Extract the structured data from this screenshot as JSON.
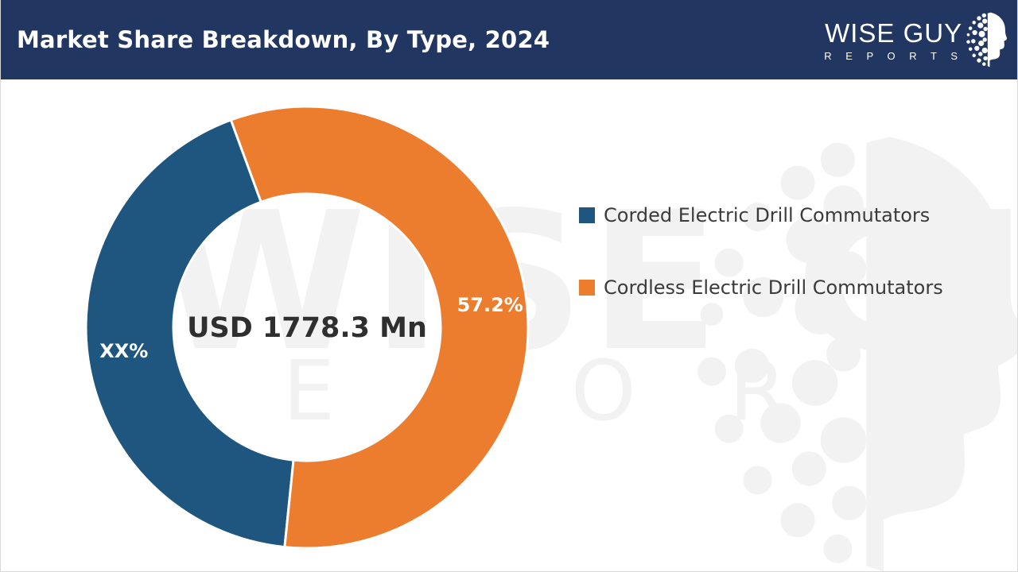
{
  "header": {
    "title": "Market Share Breakdown, By Type, 2024",
    "background_color": "#213660",
    "brand": {
      "line1": "WISE GUY",
      "line2": "R E P O R T S",
      "face_icon": "dotted-head-profile-icon"
    }
  },
  "chart_data": {
    "type": "pie",
    "subtype": "donut",
    "title": "Market Share Breakdown, By Type, 2024",
    "center_label": "USD 1778.3 Mn",
    "start_angle_deg": 185.8,
    "donut_hole_ratio": 0.6,
    "legend_position": "right",
    "slices": [
      {
        "name": "Corded Electric Drill Commutators",
        "label": "XX%",
        "value_pct": 42.8,
        "color": "#1f567f"
      },
      {
        "name": "Cordless Electric Drill Commutators",
        "label": "57.2%",
        "value_pct": 57.2,
        "color": "#ec7d2f"
      }
    ]
  },
  "watermark": {
    "line1": "WISE GUY",
    "line2": "R E P O R T S"
  }
}
